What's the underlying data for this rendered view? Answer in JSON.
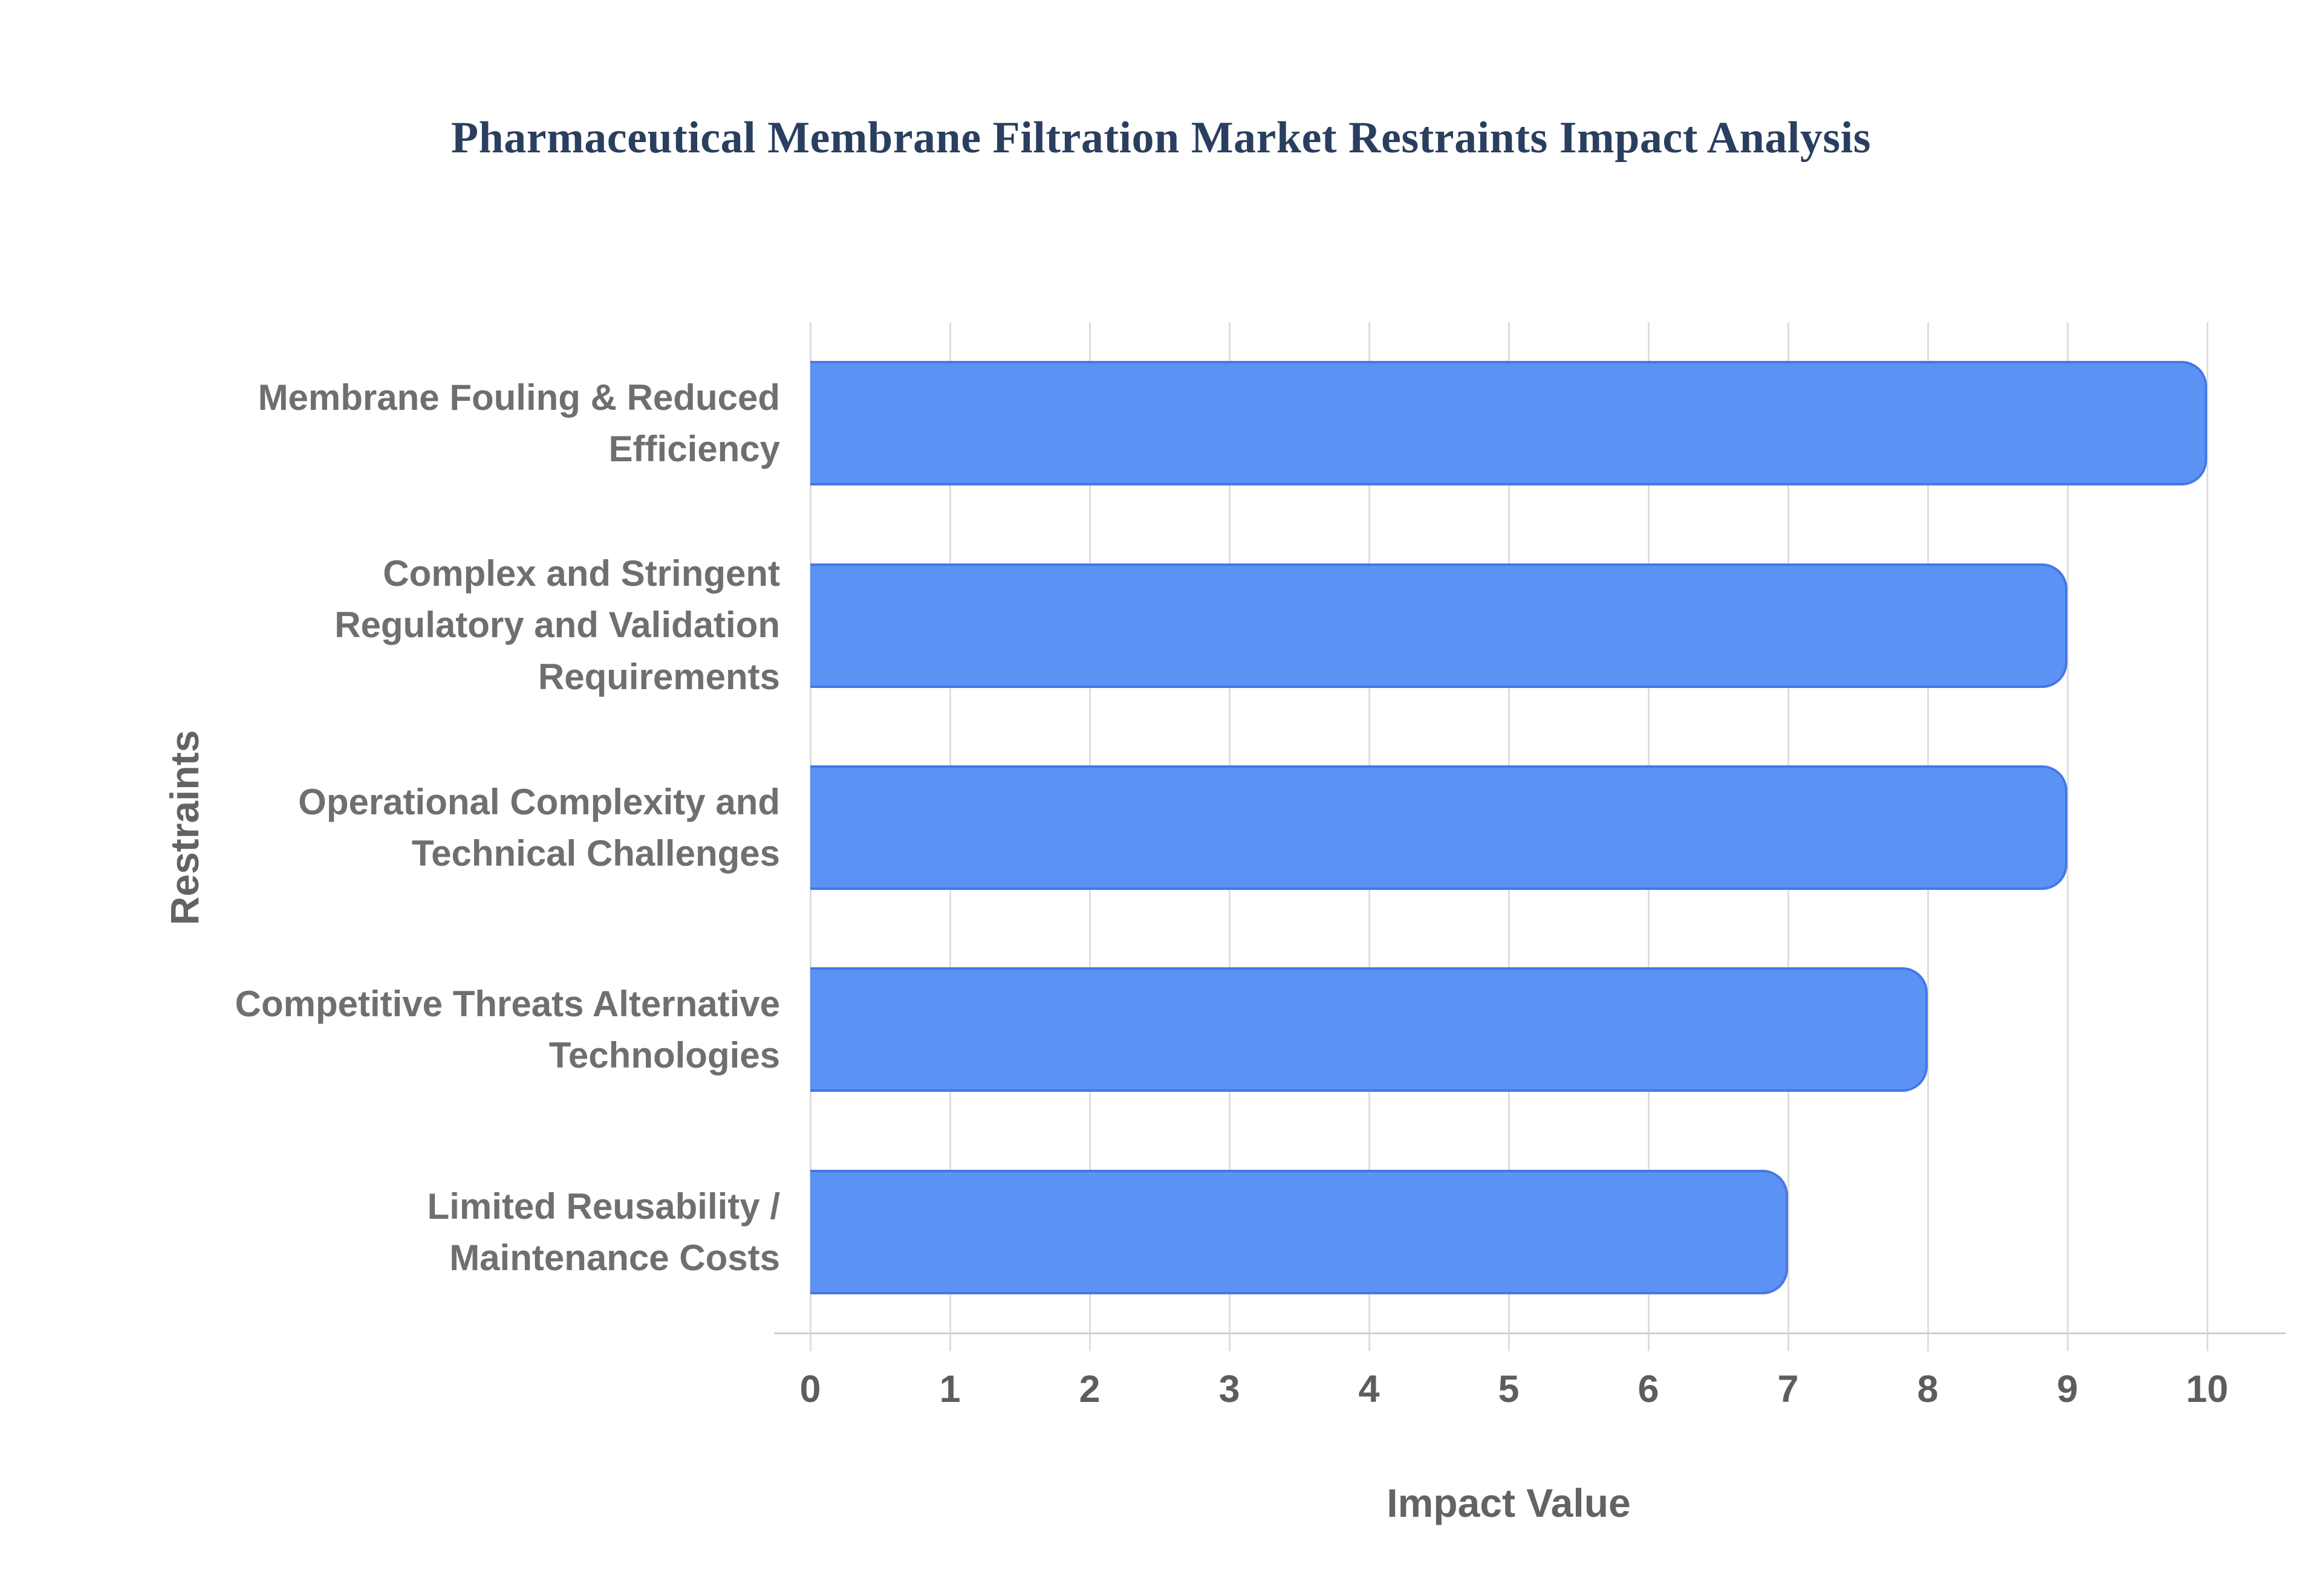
{
  "page": {
    "background": "#ffffff"
  },
  "chart_data": {
    "type": "bar",
    "orientation": "horizontal",
    "title": "Pharmaceutical Membrane Filtration Market Restraints Impact Analysis",
    "xlabel": "Impact Value",
    "ylabel": "Restraints",
    "categories": [
      "Membrane Fouling & Reduced Efficiency",
      "Complex and Stringent Regulatory and Validation Requirements",
      "Operational Complexity and Technical Challenges",
      "Competitive Threats Alternative Technologies",
      "Limited Reusability / Maintenance Costs"
    ],
    "values": [
      10,
      9,
      9,
      8,
      7
    ],
    "xlim": [
      0,
      10
    ],
    "xticks": [
      0,
      1,
      2,
      3,
      4,
      5,
      6,
      7,
      8,
      9,
      10
    ],
    "grid": true,
    "legend": "none",
    "colors": {
      "bar_fill": "#5b92f3",
      "bar_border": "#4577e6",
      "title": "#2a3f5f",
      "axis_title": "#636363",
      "tick_label": "#5d5d5d",
      "category_label": "#6f6f6f",
      "gridline": "#dedede",
      "axis_line": "#d0d0d0"
    }
  }
}
